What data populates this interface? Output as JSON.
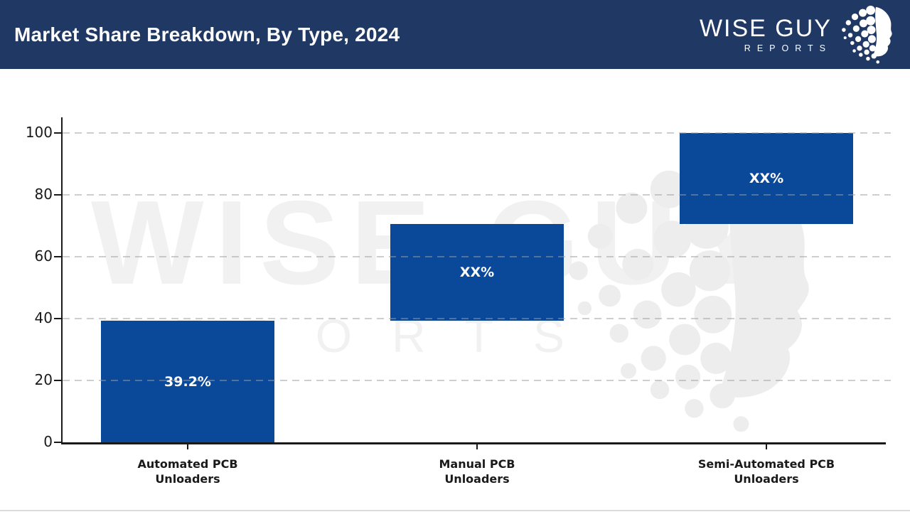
{
  "header": {
    "title": "Market Share Breakdown, By Type, 2024",
    "logo": {
      "line1": "WISE GUY",
      "line2": "REPORTS"
    },
    "bg_color": "#1f3864"
  },
  "watermark": {
    "line1": "WISE GUY",
    "line2": "REPORTS"
  },
  "chart_data": {
    "type": "bar",
    "variant": "floating-waterfall",
    "title": "Market Share Breakdown, By Type, 2024",
    "categories": [
      "Automated PCB Unloaders",
      "Manual PCB Unloaders",
      "Semi-Automated PCB Unloaders"
    ],
    "category_lines": [
      [
        "Automated PCB",
        "Unloaders"
      ],
      [
        "Manual PCB",
        "Unloaders"
      ],
      [
        "Semi-Automated PCB",
        "Unloaders"
      ]
    ],
    "bars": [
      {
        "start": 0,
        "end": 39.2,
        "label": "39.2%"
      },
      {
        "start": 39.2,
        "end": 70.6,
        "label": "XX%"
      },
      {
        "start": 70.6,
        "end": 100,
        "label": "XX%"
      }
    ],
    "yticks": [
      0,
      20,
      40,
      60,
      80,
      100
    ],
    "ylim": [
      0,
      100
    ],
    "xlabel": "",
    "ylabel": "",
    "bar_color": "#0a4899",
    "grid": {
      "axis": "y",
      "style": "dashed",
      "color": "#d9d9d9"
    },
    "legend": null
  },
  "colors": {
    "header_bg": "#1f3864",
    "bar": "#0a4899",
    "axis_text": "#1a1a1a",
    "watermark": "#f1f1f1"
  }
}
